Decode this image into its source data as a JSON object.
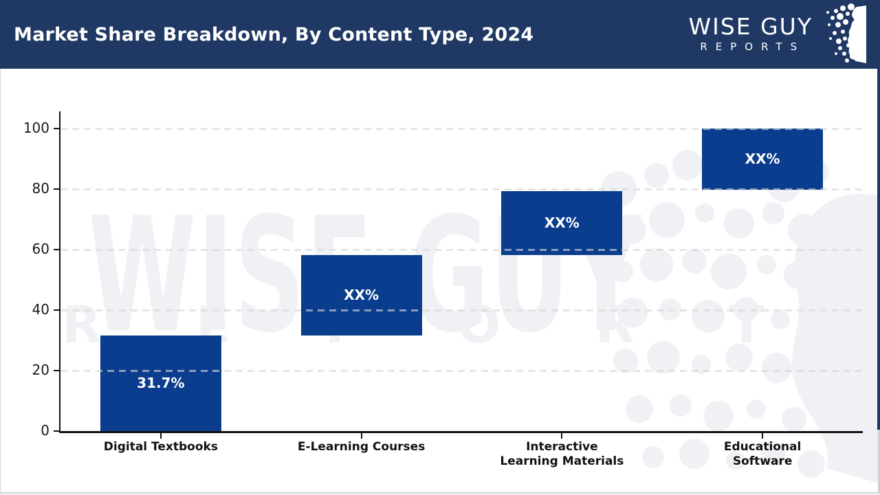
{
  "header": {
    "title": "Market Share Breakdown, By Content Type, 2024",
    "brand": {
      "name_line": "WISE GUY",
      "reports_line": "REPORTS"
    }
  },
  "watermark": {
    "line1": "WISE GUY",
    "line2": "R E P O R T S"
  },
  "colors": {
    "header_bg": "#1f3864",
    "bar": "#0b3d8f",
    "axis": "#111111",
    "grid": "#d6d6d6",
    "value_label": "#ffffff"
  },
  "chart_data": {
    "type": "bar",
    "subtype": "waterfall-floating-bars",
    "title": "Market Share Breakdown, By Content Type, 2024",
    "xlabel": "",
    "ylabel": "",
    "ylim": [
      0,
      100
    ],
    "yticks": [
      0,
      20,
      40,
      60,
      80,
      100
    ],
    "grid": "horizontal dashed",
    "legend": "none",
    "categories": [
      "Digital Textbooks",
      "E-Learning Courses",
      "Interactive Learning Materials",
      "Educational Software"
    ],
    "segments": [
      {
        "category": "Digital Textbooks",
        "category_display": "Digital Textbooks",
        "start": 0,
        "end": 31.7,
        "label": "31.7%"
      },
      {
        "category": "E-Learning Courses",
        "category_display": "E-Learning Courses",
        "start": 31.7,
        "end": 58.2,
        "label": "XX%"
      },
      {
        "category": "Interactive Learning Materials",
        "category_display": "Interactive\nLearning Materials",
        "start": 58.2,
        "end": 79.3,
        "label": "XX%"
      },
      {
        "category": "Educational Software",
        "category_display": "Educational\nSoftware",
        "start": 79.8,
        "end": 100,
        "label": "XX%"
      }
    ]
  }
}
